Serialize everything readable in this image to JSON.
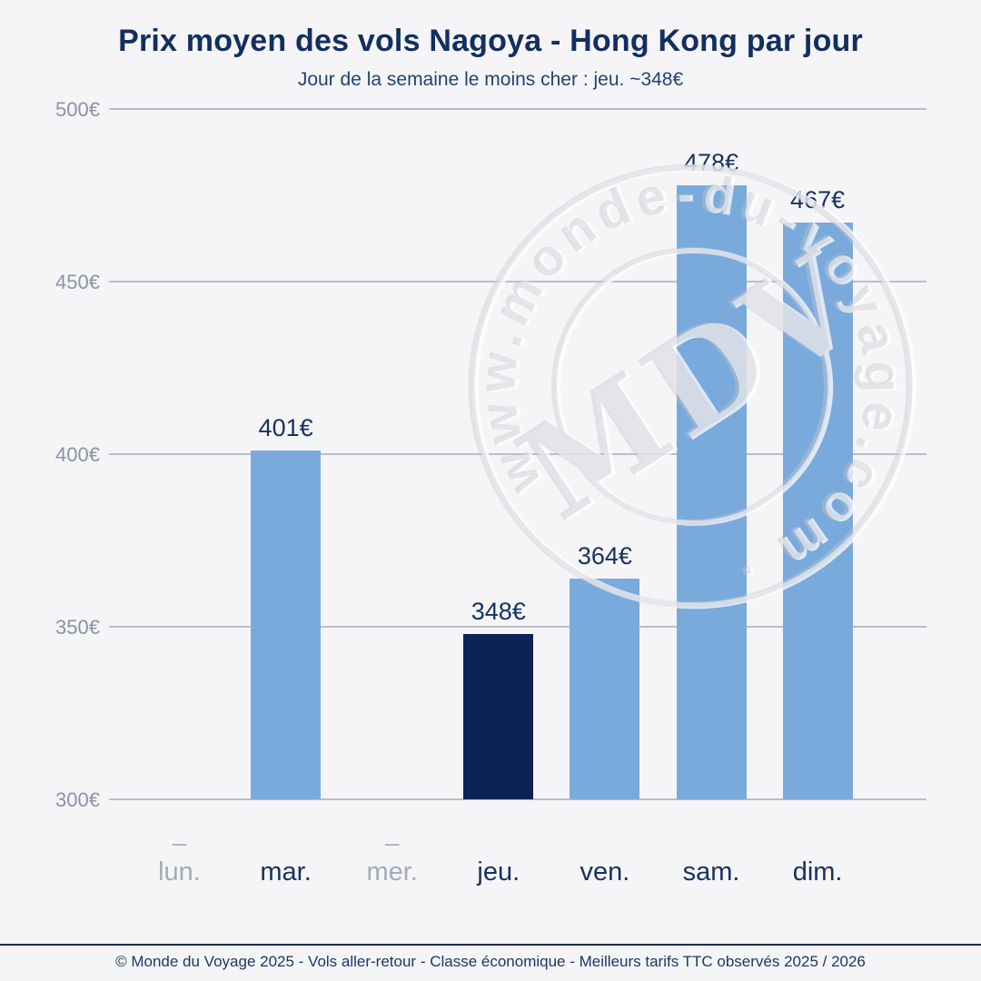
{
  "title": "Prix moyen des vols Nagoya - Hong Kong par jour",
  "subtitle": "Jour de la semaine le moins cher : jeu. ~348€",
  "watermark": {
    "ring_text": "www.monde-du-voyage.com · ",
    "center_text": "MDV"
  },
  "footer": {
    "text": "© Monde du Voyage 2025 - Vols aller-retour - Classe économique - Meilleurs tarifs TTC observés 2025 / 2026"
  },
  "colors": {
    "background": "#f5f5f7",
    "title": "#132f60",
    "subtitle": "#1e4377",
    "bar": "#7aaadc",
    "bar_highlight": "#0d2355",
    "gridline": "#b9bec9",
    "ytick_label": "#8b93a5",
    "day_label_active": "#18315f",
    "day_label_inactive": "#a3abbb",
    "footer_line": "#13294f"
  },
  "chart_data": {
    "type": "bar",
    "title": "Prix moyen des vols Nagoya - Hong Kong par jour",
    "subtitle": "Jour de la semaine le moins cher : jeu. ~348€",
    "categories": [
      "lun.",
      "mar.",
      "mer.",
      "jeu.",
      "ven.",
      "sam.",
      "dim."
    ],
    "values": [
      null,
      401,
      null,
      348,
      364,
      478,
      467
    ],
    "highlight_category": "jeu.",
    "highlight_reason": "cheapest day",
    "currency_suffix": "€",
    "no_data_marker": "–",
    "ylim": [
      300,
      500
    ],
    "yticks": [
      300,
      350,
      400,
      450,
      500
    ],
    "grid": "horizontal",
    "legend": "none",
    "xlabel": "",
    "ylabel": ""
  }
}
